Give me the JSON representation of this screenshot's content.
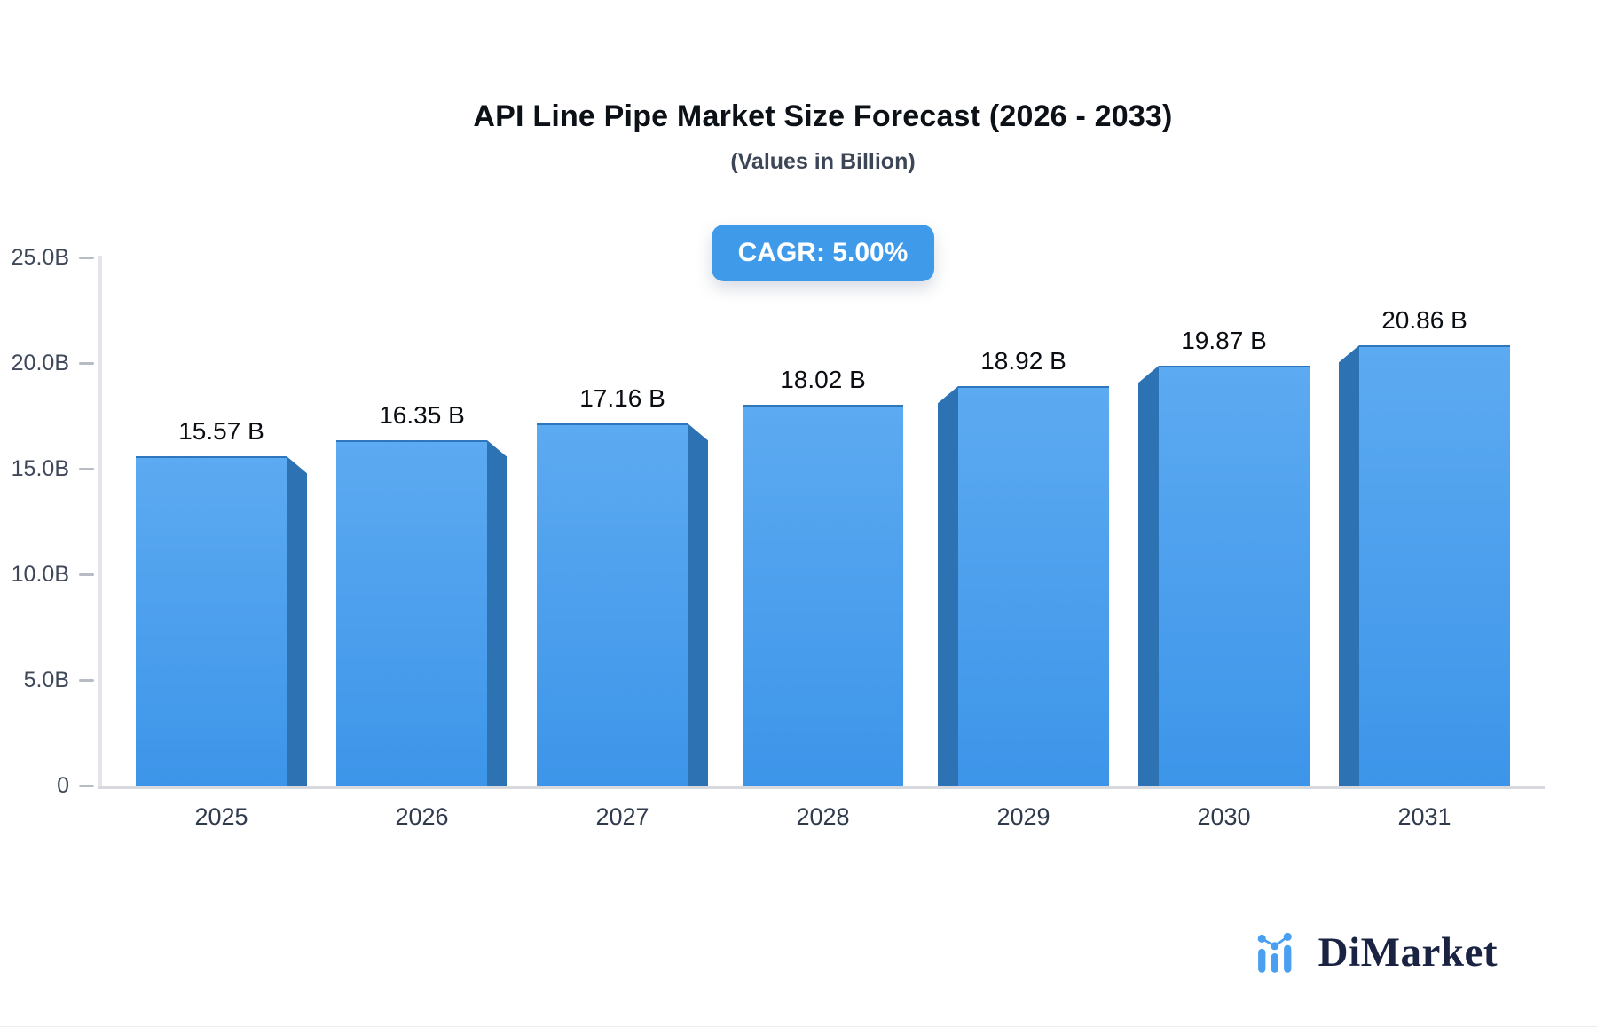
{
  "chart_data": {
    "type": "bar",
    "title": "API Line Pipe Market Size Forecast (2026 - 2033)",
    "subtitle": "(Values in Billion)",
    "badge_label": "CAGR: 5.00%",
    "categories": [
      "2025",
      "2026",
      "2027",
      "2028",
      "2029",
      "2030",
      "2031"
    ],
    "values": [
      15.57,
      16.35,
      17.16,
      18.02,
      18.92,
      19.87,
      20.86
    ],
    "value_labels": [
      "15.57 B",
      "16.35 B",
      "17.16 B",
      "18.02 B",
      "18.92 B",
      "19.87 B",
      "20.86 B"
    ],
    "unit": "B",
    "y_ticks": [
      "25.0B",
      "20.0B",
      "15.0B",
      "10.0B",
      "5.0B",
      "0"
    ],
    "ylim": [
      0,
      25
    ],
    "grid": "off",
    "legend": "none",
    "style": "3d-extruded-bars, perspective toward center",
    "colors": {
      "bar_front_top": "#5caaf1",
      "bar_front_bottom": "#3d95e9",
      "bar_side": "#2d73b4",
      "badge_bg": "#3f9bea",
      "badge_text": "#ffffff",
      "axis_line": "#e4e5e9",
      "baseline": "#d8d9de"
    }
  },
  "branding": {
    "logo_text": "DiMarket",
    "logo_icon": "bar-chart-with-trend-dots-icon",
    "logo_text_color": "#1a2342",
    "logo_icon_color": "#4aa0f0"
  }
}
